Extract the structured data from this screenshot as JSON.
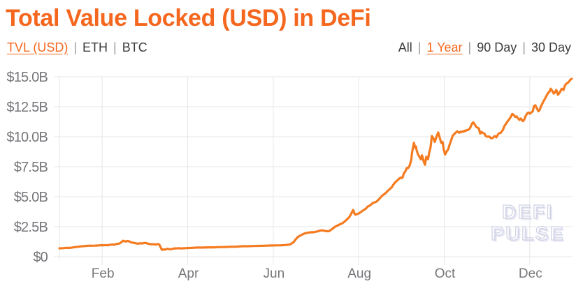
{
  "title": "Total Value Locked (USD) in DeFi",
  "colors": {
    "accent": "#f5671e",
    "line": "#f47b20",
    "grid": "#e7e7e7",
    "axis_label": "#76767a",
    "tab_text": "#3c3c40",
    "separator": "#9b9b9b",
    "watermark": "#cfd1e4"
  },
  "metric_tabs": {
    "separator": "|",
    "items": [
      {
        "label": "TVL (USD)",
        "active": true
      },
      {
        "label": "ETH",
        "active": false
      },
      {
        "label": "BTC",
        "active": false
      }
    ]
  },
  "range_tabs": {
    "separator": "|",
    "items": [
      {
        "label": "All",
        "active": false
      },
      {
        "label": "1 Year",
        "active": true
      },
      {
        "label": "90 Day",
        "active": false
      },
      {
        "label": "30 Day",
        "active": false
      }
    ]
  },
  "watermark": {
    "line1": "DEFI",
    "line2": "PULSE"
  },
  "chart_data": {
    "type": "line",
    "title": "Total Value Locked (USD) in DeFi",
    "xlabel": "",
    "ylabel": "",
    "x_unit": "months_since_jan_1",
    "xlim": [
      0,
      12
    ],
    "ylim": [
      0,
      15
    ],
    "grid": true,
    "x_ticks": [
      {
        "v": 1,
        "label": "Feb"
      },
      {
        "v": 3,
        "label": "Apr"
      },
      {
        "v": 5,
        "label": "Jun"
      },
      {
        "v": 7,
        "label": "Aug"
      },
      {
        "v": 9,
        "label": "Oct"
      },
      {
        "v": 11,
        "label": "Dec"
      }
    ],
    "y_ticks": [
      {
        "v": 0,
        "label": "$0"
      },
      {
        "v": 2.5,
        "label": "$2.5B"
      },
      {
        "v": 5,
        "label": "$5.0B"
      },
      {
        "v": 7.5,
        "label": "$7.5B"
      },
      {
        "v": 10,
        "label": "$10.0B"
      },
      {
        "v": 12.5,
        "label": "$12.5B"
      },
      {
        "v": 15,
        "label": "$15.0B"
      }
    ],
    "series": [
      {
        "name": "TVL (USD)",
        "unit": "billion USD",
        "points": [
          [
            0,
            0.7
          ],
          [
            0.08,
            0.71
          ],
          [
            0.16,
            0.74
          ],
          [
            0.24,
            0.73
          ],
          [
            0.33,
            0.78
          ],
          [
            0.38,
            0.81
          ],
          [
            0.44,
            0.83
          ],
          [
            0.5,
            0.86
          ],
          [
            0.57,
            0.88
          ],
          [
            0.63,
            0.9
          ],
          [
            0.7,
            0.92
          ],
          [
            0.76,
            0.91
          ],
          [
            0.82,
            0.92
          ],
          [
            0.88,
            0.93
          ],
          [
            0.93,
            0.94
          ],
          [
            0.98,
            0.96
          ],
          [
            1.03,
            0.95
          ],
          [
            1.08,
            0.97
          ],
          [
            1.13,
            0.95
          ],
          [
            1.19,
            1
          ],
          [
            1.24,
            1.02
          ],
          [
            1.28,
            1
          ],
          [
            1.33,
            1.06
          ],
          [
            1.39,
            1.09
          ],
          [
            1.43,
            1.15
          ],
          [
            1.46,
            1.24
          ],
          [
            1.49,
            1.33
          ],
          [
            1.52,
            1.29
          ],
          [
            1.55,
            1.26
          ],
          [
            1.58,
            1.31
          ],
          [
            1.62,
            1.29
          ],
          [
            1.65,
            1.25
          ],
          [
            1.68,
            1.19
          ],
          [
            1.72,
            1.17
          ],
          [
            1.77,
            1.13
          ],
          [
            1.81,
            1.1
          ],
          [
            1.85,
            1.09
          ],
          [
            1.89,
            1.12
          ],
          [
            1.93,
            1.1
          ],
          [
            1.97,
            1.13
          ],
          [
            2.01,
            1.15
          ],
          [
            2.05,
            1.11
          ],
          [
            2.09,
            1.07
          ],
          [
            2.13,
            1.05
          ],
          [
            2.17,
            1.03
          ],
          [
            2.2,
            1.05
          ],
          [
            2.24,
            1.01
          ],
          [
            2.28,
            1.04
          ],
          [
            2.31,
            1.06
          ],
          [
            2.34,
            0.98
          ],
          [
            2.37,
            0.75
          ],
          [
            2.4,
            0.57
          ],
          [
            2.43,
            0.62
          ],
          [
            2.47,
            0.59
          ],
          [
            2.5,
            0.64
          ],
          [
            2.53,
            0.66
          ],
          [
            2.57,
            0.62
          ],
          [
            2.62,
            0.63
          ],
          [
            2.66,
            0.67
          ],
          [
            2.7,
            0.69
          ],
          [
            2.75,
            0.7
          ],
          [
            2.8,
            0.71
          ],
          [
            2.85,
            0.69
          ],
          [
            2.89,
            0.7
          ],
          [
            2.94,
            0.71
          ],
          [
            2.99,
            0.72
          ],
          [
            3.11,
            0.74
          ],
          [
            3.22,
            0.76
          ],
          [
            3.35,
            0.76
          ],
          [
            3.48,
            0.78
          ],
          [
            3.61,
            0.78
          ],
          [
            3.74,
            0.8
          ],
          [
            3.87,
            0.81
          ],
          [
            4.01,
            0.83
          ],
          [
            4.14,
            0.84
          ],
          [
            4.27,
            0.87
          ],
          [
            4.4,
            0.87
          ],
          [
            4.53,
            0.89
          ],
          [
            4.66,
            0.9
          ],
          [
            4.79,
            0.91
          ],
          [
            4.92,
            0.93
          ],
          [
            5.05,
            0.94
          ],
          [
            5.18,
            0.95
          ],
          [
            5.28,
            0.97
          ],
          [
            5.33,
            0.99
          ],
          [
            5.38,
            1.01
          ],
          [
            5.41,
            1.05
          ],
          [
            5.44,
            1.12
          ],
          [
            5.48,
            1.22
          ],
          [
            5.51,
            1.38
          ],
          [
            5.54,
            1.5
          ],
          [
            5.57,
            1.62
          ],
          [
            5.6,
            1.7
          ],
          [
            5.64,
            1.78
          ],
          [
            5.68,
            1.85
          ],
          [
            5.71,
            1.9
          ],
          [
            5.74,
            1.95
          ],
          [
            5.77,
            1.96
          ],
          [
            5.8,
            2
          ],
          [
            5.84,
            2.01
          ],
          [
            5.87,
            2.03
          ],
          [
            5.9,
            2.04
          ],
          [
            5.93,
            2.03
          ],
          [
            5.97,
            2.06
          ],
          [
            6.01,
            2.09
          ],
          [
            6.05,
            2.12
          ],
          [
            6.09,
            2.17
          ],
          [
            6.13,
            2.2
          ],
          [
            6.17,
            2.18
          ],
          [
            6.21,
            2.15
          ],
          [
            6.25,
            2.13
          ],
          [
            6.29,
            2.12
          ],
          [
            6.33,
            2.18
          ],
          [
            6.36,
            2.26
          ],
          [
            6.4,
            2.36
          ],
          [
            6.43,
            2.46
          ],
          [
            6.46,
            2.52
          ],
          [
            6.49,
            2.58
          ],
          [
            6.53,
            2.64
          ],
          [
            6.56,
            2.7
          ],
          [
            6.59,
            2.75
          ],
          [
            6.62,
            2.79
          ],
          [
            6.66,
            2.9
          ],
          [
            6.7,
            3.03
          ],
          [
            6.74,
            3.16
          ],
          [
            6.78,
            3.3
          ],
          [
            6.82,
            3.55
          ],
          [
            6.87,
            3.9
          ],
          [
            6.9,
            3.6
          ],
          [
            6.92,
            3.5
          ],
          [
            6.96,
            3.55
          ],
          [
            7.01,
            3.62
          ],
          [
            7.06,
            3.75
          ],
          [
            7.11,
            3.88
          ],
          [
            7.16,
            3.98
          ],
          [
            7.19,
            4.1
          ],
          [
            7.21,
            4.18
          ],
          [
            7.24,
            4.22
          ],
          [
            7.27,
            4.3
          ],
          [
            7.29,
            4.35
          ],
          [
            7.32,
            4.45
          ],
          [
            7.34,
            4.5
          ],
          [
            7.37,
            4.52
          ],
          [
            7.39,
            4.55
          ],
          [
            7.42,
            4.6
          ],
          [
            7.44,
            4.68
          ],
          [
            7.47,
            4.78
          ],
          [
            7.5,
            4.9
          ],
          [
            7.53,
            5.02
          ],
          [
            7.57,
            5.15
          ],
          [
            7.6,
            5.22
          ],
          [
            7.63,
            5.3
          ],
          [
            7.66,
            5.42
          ],
          [
            7.7,
            5.55
          ],
          [
            7.73,
            5.65
          ],
          [
            7.77,
            5.78
          ],
          [
            7.8,
            5.95
          ],
          [
            7.83,
            6.1
          ],
          [
            7.86,
            6.22
          ],
          [
            7.9,
            6.35
          ],
          [
            7.93,
            6.45
          ],
          [
            7.96,
            6.55
          ],
          [
            7.99,
            6.6
          ],
          [
            8.01,
            6.55
          ],
          [
            8.03,
            6.65
          ],
          [
            8.06,
            6.98
          ],
          [
            8.09,
            7.1
          ],
          [
            8.11,
            7.28
          ],
          [
            8.13,
            7.4
          ],
          [
            8.15,
            7.38
          ],
          [
            8.17,
            7.46
          ],
          [
            8.19,
            7.6
          ],
          [
            8.21,
            7.83
          ],
          [
            8.23,
            8.1
          ],
          [
            8.24,
            8.45
          ],
          [
            8.26,
            8.92
          ],
          [
            8.28,
            9.3
          ],
          [
            8.29,
            9.49
          ],
          [
            8.32,
            9.1
          ],
          [
            8.34,
            9.18
          ],
          [
            8.35,
            8.95
          ],
          [
            8.37,
            8.7
          ],
          [
            8.39,
            8.5
          ],
          [
            8.42,
            8.33
          ],
          [
            8.45,
            8.12
          ],
          [
            8.48,
            8.45
          ],
          [
            8.5,
            8.2
          ],
          [
            8.52,
            7.94
          ],
          [
            8.55,
            7.66
          ],
          [
            8.58,
            8.33
          ],
          [
            8.62,
            8.12
          ],
          [
            8.65,
            8.7
          ],
          [
            8.68,
            9.1
          ],
          [
            8.71,
            10.06
          ],
          [
            8.73,
            9.95
          ],
          [
            8.75,
            9.86
          ],
          [
            8.78,
            9.57
          ],
          [
            8.81,
            9.9
          ],
          [
            8.83,
            10.1
          ],
          [
            8.86,
            10.36
          ],
          [
            8.89,
            9.97
          ],
          [
            8.93,
            9.49
          ],
          [
            8.96,
            9.57
          ],
          [
            8.99,
            8.92
          ],
          [
            9.02,
            8.52
          ],
          [
            9.04,
            8.65
          ],
          [
            9.06,
            8.8
          ],
          [
            9.09,
            8.92
          ],
          [
            9.12,
            9.28
          ],
          [
            9.16,
            9.68
          ],
          [
            9.2,
            10.1
          ],
          [
            9.23,
            10.2
          ],
          [
            9.25,
            10.28
          ],
          [
            9.28,
            10.38
          ],
          [
            9.3,
            10.45
          ],
          [
            9.33,
            10.38
          ],
          [
            9.35,
            10.33
          ],
          [
            9.38,
            10.42
          ],
          [
            9.4,
            10.38
          ],
          [
            9.43,
            10.45
          ],
          [
            9.45,
            10.42
          ],
          [
            9.48,
            10.5
          ],
          [
            9.5,
            10.48
          ],
          [
            9.53,
            10.55
          ],
          [
            9.55,
            10.56
          ],
          [
            9.58,
            10.62
          ],
          [
            9.6,
            10.7
          ],
          [
            9.65,
            11.1
          ],
          [
            9.68,
            11.2
          ],
          [
            9.71,
            11.05
          ],
          [
            9.74,
            10.85
          ],
          [
            9.78,
            10.75
          ],
          [
            9.81,
            10.7
          ],
          [
            9.84,
            10.26
          ],
          [
            9.87,
            10.4
          ],
          [
            9.91,
            10.3
          ],
          [
            9.94,
            10.26
          ],
          [
            9.97,
            10.06
          ],
          [
            10.01,
            10
          ],
          [
            10.05,
            10.02
          ],
          [
            10.1,
            9.86
          ],
          [
            10.14,
            9.92
          ],
          [
            10.18,
            10.06
          ],
          [
            10.22,
            9.95
          ],
          [
            10.27,
            10.26
          ],
          [
            10.32,
            10.32
          ],
          [
            10.37,
            10.55
          ],
          [
            10.41,
            10.9
          ],
          [
            10.44,
            11.05
          ],
          [
            10.46,
            11.18
          ],
          [
            10.49,
            11.3
          ],
          [
            10.51,
            11.42
          ],
          [
            10.53,
            11.5
          ],
          [
            10.56,
            11.68
          ],
          [
            10.59,
            11.9
          ],
          [
            10.63,
            11.8
          ],
          [
            10.66,
            11.65
          ],
          [
            10.69,
            11.7
          ],
          [
            10.72,
            11.55
          ],
          [
            10.76,
            11.4
          ],
          [
            10.79,
            11.52
          ],
          [
            10.84,
            11.3
          ],
          [
            10.87,
            11.42
          ],
          [
            10.9,
            11.7
          ],
          [
            10.94,
            11.95
          ],
          [
            10.97,
            12.02
          ],
          [
            11,
            11.92
          ],
          [
            11.03,
            12
          ],
          [
            11.07,
            12.12
          ],
          [
            11.1,
            12.55
          ],
          [
            11.13,
            12.62
          ],
          [
            11.17,
            12.35
          ],
          [
            11.2,
            12.12
          ],
          [
            11.23,
            12.22
          ],
          [
            11.26,
            12.5
          ],
          [
            11.3,
            12.8
          ],
          [
            11.33,
            13
          ],
          [
            11.36,
            13.2
          ],
          [
            11.39,
            13.4
          ],
          [
            11.43,
            13.65
          ],
          [
            11.46,
            13.75
          ],
          [
            11.49,
            14
          ],
          [
            11.53,
            13.8
          ],
          [
            11.56,
            13.6
          ],
          [
            11.59,
            13.7
          ],
          [
            11.62,
            13.9
          ],
          [
            11.66,
            13.5
          ],
          [
            11.69,
            13.62
          ],
          [
            11.72,
            13.82
          ],
          [
            11.75,
            14
          ],
          [
            11.79,
            13.9
          ],
          [
            11.82,
            14.25
          ],
          [
            11.85,
            14.4
          ],
          [
            11.89,
            14.5
          ],
          [
            11.92,
            14.6
          ],
          [
            11.95,
            14.75
          ],
          [
            11.98,
            14.82
          ]
        ]
      }
    ]
  }
}
